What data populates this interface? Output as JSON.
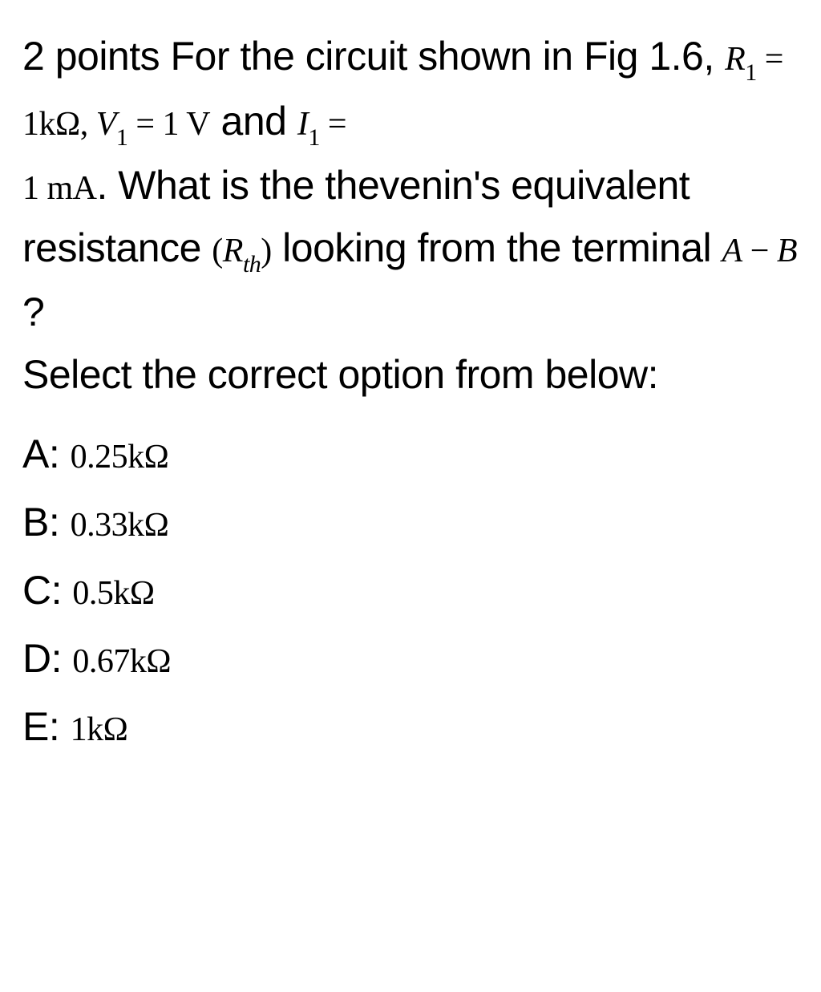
{
  "question": {
    "points_prefix": "2 points For the circuit shown in Fig 1.6, ",
    "R1_var": "R",
    "R1_sub": "1",
    "R1_val": " = 1kΩ, ",
    "V1_var": "V",
    "V1_sub": "1",
    "V1_val": " = 1 V",
    "and_text": " and ",
    "I1_var": "I",
    "I1_sub": "1",
    "I1_eq": " =",
    "I1_val": "1 mA",
    "after_I1": ". What is the thevenin's equivalent resistance ",
    "Rth_open": "(",
    "Rth_var": "R",
    "Rth_sub": "th",
    "Rth_close": ")",
    "looking_text": " looking from the terminal ",
    "A_var": "A",
    "minus": " − ",
    "B_var": "B",
    "qmark": " ?",
    "select_text": "Select the correct option from below:"
  },
  "options": {
    "A": {
      "label": "A: ",
      "value": "0.25kΩ"
    },
    "B": {
      "label": "B: ",
      "value": "0.33kΩ"
    },
    "C": {
      "label": "C: ",
      "value": "0.5kΩ"
    },
    "D": {
      "label": "D: ",
      "value": "0.67kΩ"
    },
    "E": {
      "label": "E: ",
      "value": "1kΩ"
    }
  }
}
